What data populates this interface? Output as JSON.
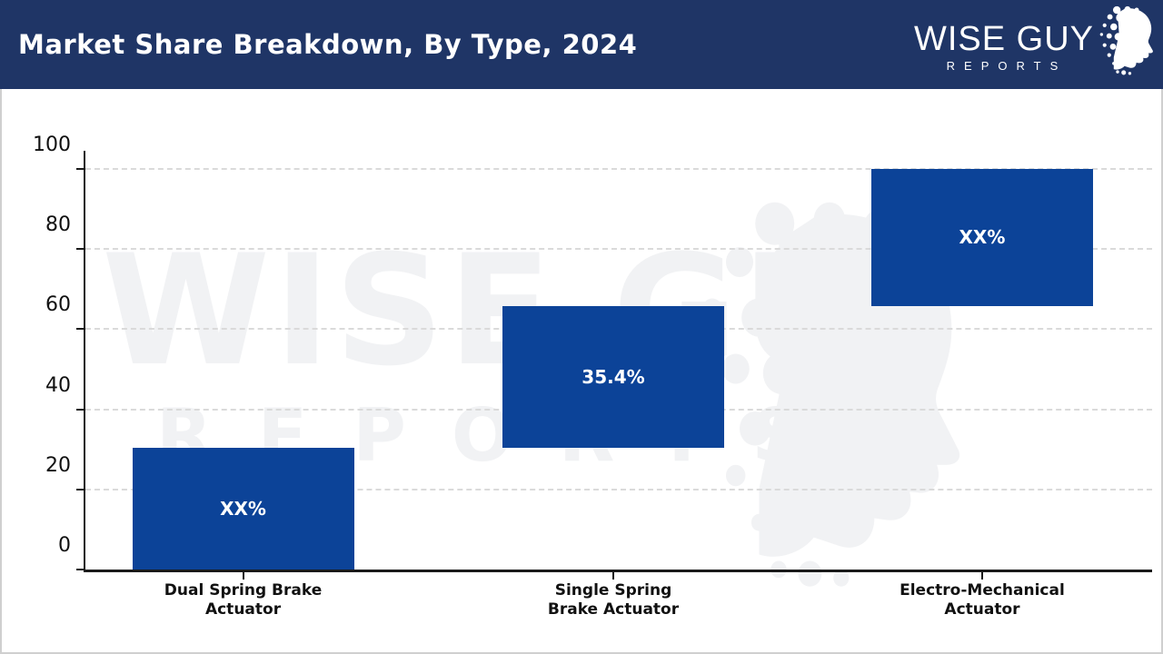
{
  "header": {
    "title": "Market Share Breakdown, By Type, 2024",
    "bg_color": "#1f3566",
    "logo": {
      "line1": "WISE GUY",
      "line2": "REPORTS"
    }
  },
  "watermark": {
    "line1": "WISE GUY",
    "line2": "REPORTS"
  },
  "chart_data": {
    "type": "bar",
    "variant": "floating-segments",
    "title": "Market Share Breakdown, By Type, 2024",
    "categories": [
      [
        "Dual Spring Brake",
        "Actuator"
      ],
      [
        "Single Spring",
        "Brake Actuator"
      ],
      [
        "Electro-Mechanical",
        "Actuator"
      ]
    ],
    "segments": [
      {
        "start": 0,
        "end": 30.4,
        "label": "XX%"
      },
      {
        "start": 30.4,
        "end": 65.8,
        "label": "35.4%"
      },
      {
        "start": 65.8,
        "end": 100,
        "label": "XX%"
      }
    ],
    "ylim": [
      0,
      100
    ],
    "yticks": [
      0,
      20,
      40,
      60,
      80,
      100
    ],
    "grid": "dashed-horizontal",
    "legend": "none",
    "bar_color": "#0c4398",
    "bar_label_color": "#ffffff",
    "axis_color": "#1a1a1a"
  }
}
